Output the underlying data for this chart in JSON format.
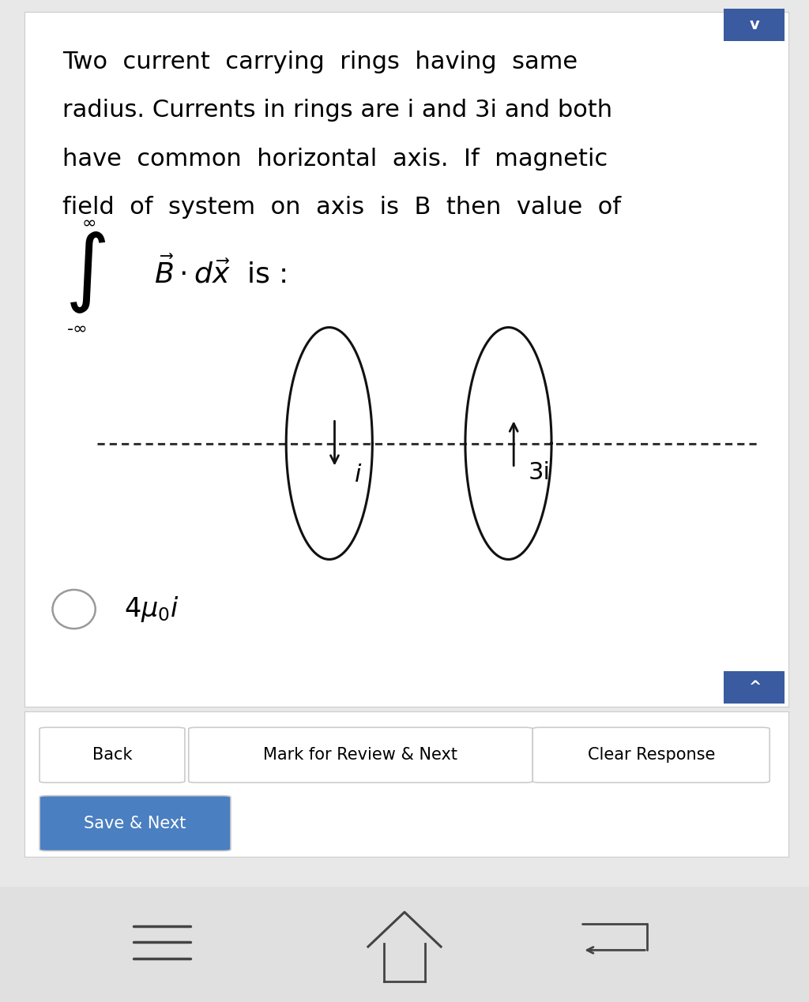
{
  "bg_color": "#e8e8e8",
  "card_bg": "#ffffff",
  "card_border": "#cccccc",
  "title_lines": [
    "Two  current  carrying  rings  having  same",
    "radius. Currents in rings are i and 3i and both",
    "have  common  horizontal  axis.  If  magnetic",
    "field  of  system  on  axis  is  B  then  value  of"
  ],
  "integral_upper": "∞",
  "integral_lower": "-∞",
  "v_button_color": "#3a5ba0",
  "v_button_text": "v",
  "up_button_color": "#3a5ba0",
  "up_button_text": "^",
  "option_circle_color": "#999999",
  "ring1_label": "i",
  "ring2_label": "3i",
  "axis_dash_color": "#333333",
  "ring_color": "#111111",
  "bottom_panel_bg": "#ffffff",
  "bottom_panel_border": "#cccccc",
  "btn_back_text": "Back",
  "btn_review_text": "Mark for Review & Next",
  "btn_clear_text": "Clear Response",
  "btn_save_text": "Save & Next",
  "btn_save_bg": "#4a7fc1",
  "btn_save_text_color": "#ffffff",
  "btn_border": "#cccccc",
  "navbar_bg": "#e0e0e0",
  "nav_icon_color": "#444444",
  "font_size_body": 22,
  "font_size_option": 22,
  "font_size_btn": 15,
  "font_size_integral": 26,
  "font_size_ring_label": 20
}
